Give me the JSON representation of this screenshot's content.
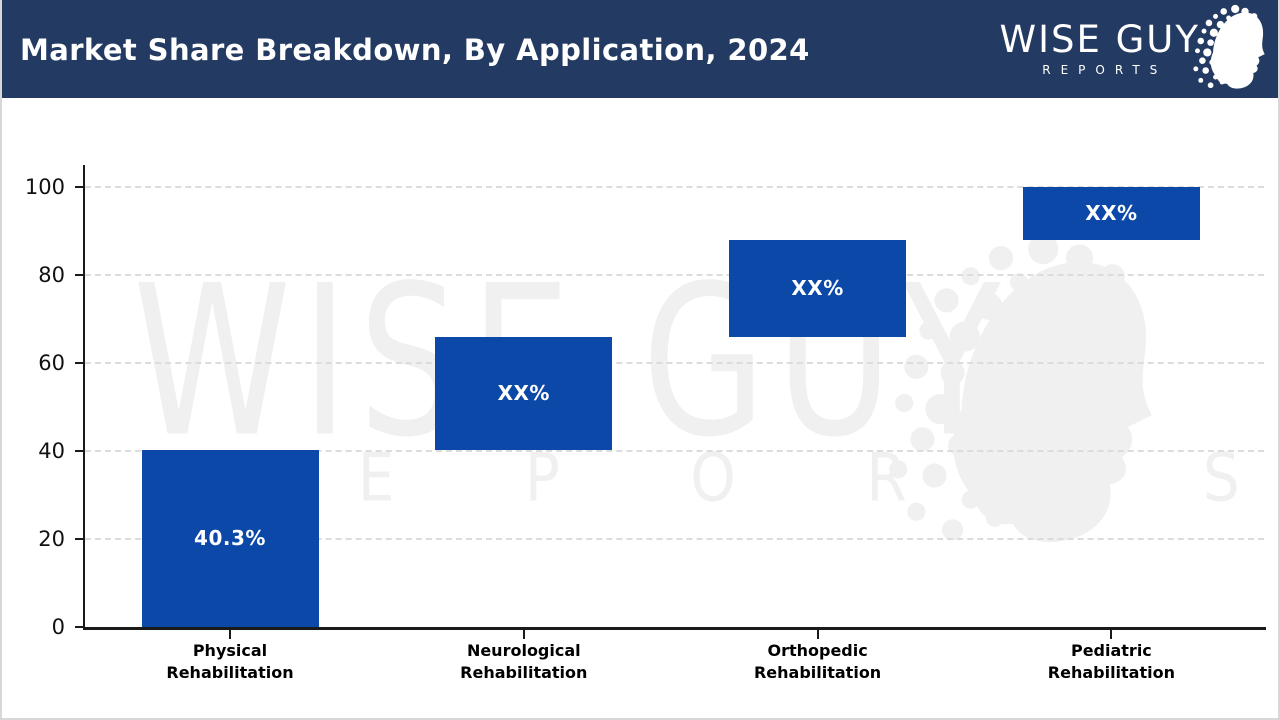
{
  "header": {
    "title": "Market Share Breakdown, By Application, 2024",
    "logo": {
      "name_line": "WISE GUY",
      "sub_line": "REPORTS"
    }
  },
  "watermark": {
    "name_line": "WISE GUY",
    "sub_line": "R E P O R T S"
  },
  "chart_data": {
    "type": "bar",
    "variant": "waterfall",
    "title": "Market Share Breakdown, By Application, 2024",
    "xlabel": "",
    "ylabel": "",
    "ylim": [
      0,
      100
    ],
    "yticks": [
      0,
      20,
      40,
      60,
      80,
      100
    ],
    "grid": "horizontal-dashed",
    "legend": "none",
    "bar_color": "#0b48a7",
    "label_color": "#ffffff",
    "categories": [
      {
        "name": "Physical Rehabilitation",
        "lines": [
          "Physical",
          "Rehabilitation"
        ]
      },
      {
        "name": "Neurological Rehabilitation",
        "lines": [
          "Neurological",
          "Rehabilitation"
        ]
      },
      {
        "name": "Orthopedic Rehabilitation",
        "lines": [
          "Orthopedic",
          "Rehabilitation"
        ]
      },
      {
        "name": "Pediatric Rehabilitation",
        "lines": [
          "Pediatric",
          "Rehabilitation"
        ]
      }
    ],
    "segments": [
      {
        "category": "Physical Rehabilitation",
        "start": 0,
        "end": 40.3,
        "value": 40.3,
        "label": "40.3%"
      },
      {
        "category": "Neurological Rehabilitation",
        "start": 40.3,
        "end": 66,
        "value": 25.7,
        "label": "XX%"
      },
      {
        "category": "Orthopedic Rehabilitation",
        "start": 66,
        "end": 88,
        "value": 22,
        "label": "XX%"
      },
      {
        "category": "Pediatric Rehabilitation",
        "start": 88,
        "end": 100,
        "value": 12,
        "label": "XX%"
      }
    ]
  },
  "colors": {
    "header_bg": "#233a63",
    "bar_blue": "#0b48a7",
    "grid": "#dcdcdc",
    "axis": "#1a1a1a",
    "watermark": "#f0f0f1",
    "page_border": "#d7d7d7"
  }
}
